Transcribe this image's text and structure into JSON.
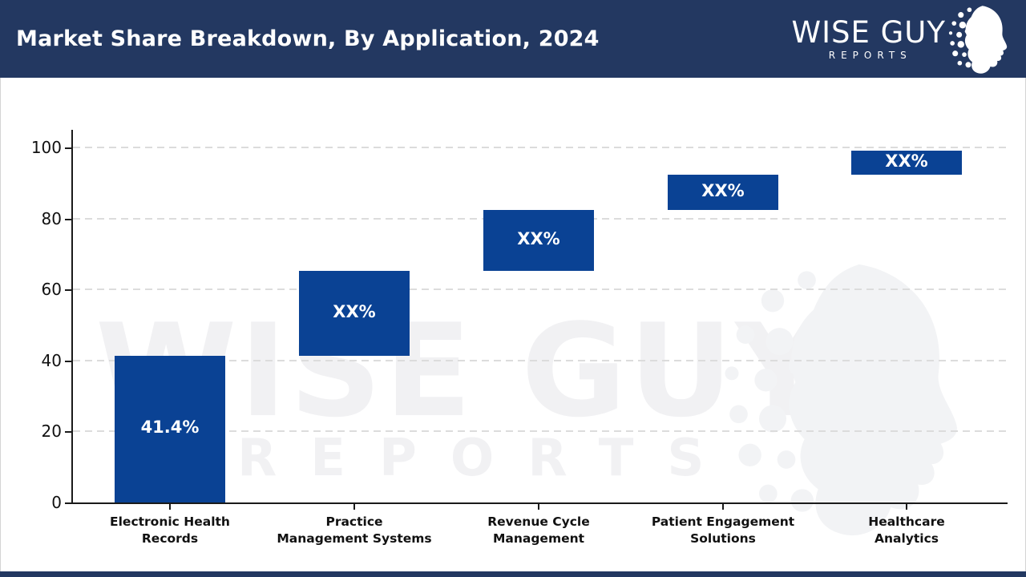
{
  "header": {
    "title": "Market Share Breakdown, By Application, 2024",
    "logo_line1": "WISE GUY",
    "logo_line2": "REPORTS"
  },
  "watermark": {
    "line1": "WISE GUY",
    "line2": "REPORTS"
  },
  "colors": {
    "header_bg": "#233861",
    "bar": "#0a4294",
    "axis": "#1a1a1a",
    "gridline": "#dcdcdc",
    "watermark": "#f1f1f3",
    "value_label_text": "#ffffff",
    "category_text": "#111111"
  },
  "chart_data": {
    "type": "bar",
    "variant": "waterfall",
    "title": "Market Share Breakdown, By Application, 2024",
    "categories": [
      "Electronic Health Records",
      "Practice Management Systems",
      "Revenue Cycle Management",
      "Patient Engagement Solutions",
      "Healthcare Analytics"
    ],
    "category_lines": [
      [
        "Electronic Health",
        "Records"
      ],
      [
        "Practice",
        "Management Systems"
      ],
      [
        "Revenue Cycle",
        "Management"
      ],
      [
        "Patient Engagement",
        "Solutions"
      ],
      [
        "Healthcare",
        "Analytics"
      ]
    ],
    "segments": [
      {
        "start": 0,
        "end": 41.4,
        "value_label": "41.4%"
      },
      {
        "start": 41.4,
        "end": 65.3,
        "value_label": "XX%"
      },
      {
        "start": 65.3,
        "end": 82.5,
        "value_label": "XX%"
      },
      {
        "start": 82.5,
        "end": 92.3,
        "value_label": "XX%"
      },
      {
        "start": 92.3,
        "end": 99.2,
        "value_label": "XX%"
      }
    ],
    "yticks": [
      0,
      20,
      40,
      60,
      80,
      100
    ],
    "ylim": [
      0,
      105
    ],
    "xlabel": "",
    "ylabel": "",
    "grid": "horizontal-dashed",
    "legend": "none"
  }
}
